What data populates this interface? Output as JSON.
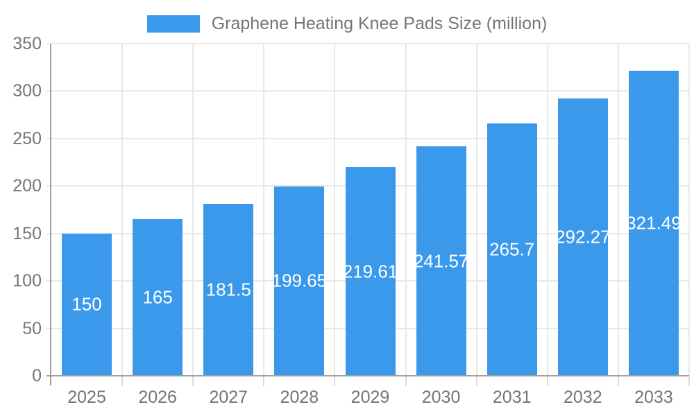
{
  "legend": {
    "label": "Graphene Heating Knee Pads Size (million)"
  },
  "colors": {
    "bar": "#3B99EC",
    "grid": "#E8E8E8",
    "axis": "#A0A0A0",
    "xtick": "#DCDCDC",
    "text": "#757575",
    "bar_label": "#FFFFFF",
    "background": "#FFFFFF"
  },
  "chart_data": {
    "type": "bar",
    "title": "Graphene Heating Knee Pads Size (million)",
    "categories": [
      "2025",
      "2026",
      "2027",
      "2028",
      "2029",
      "2030",
      "2031",
      "2032",
      "2033"
    ],
    "values": [
      150,
      165,
      181.5,
      199.65,
      219.61,
      241.57,
      265.7,
      292.27,
      321.49
    ],
    "value_labels": [
      "150",
      "165",
      "181.5",
      "199.65",
      "219.61",
      "241.57",
      "265.7",
      "292.27",
      "321.49"
    ],
    "xlabel": "",
    "ylabel": "",
    "ylim": [
      0,
      350
    ],
    "ytick_step": 50,
    "grid": true,
    "legend_position": "top-center",
    "bar_label_position": "inside-center"
  }
}
